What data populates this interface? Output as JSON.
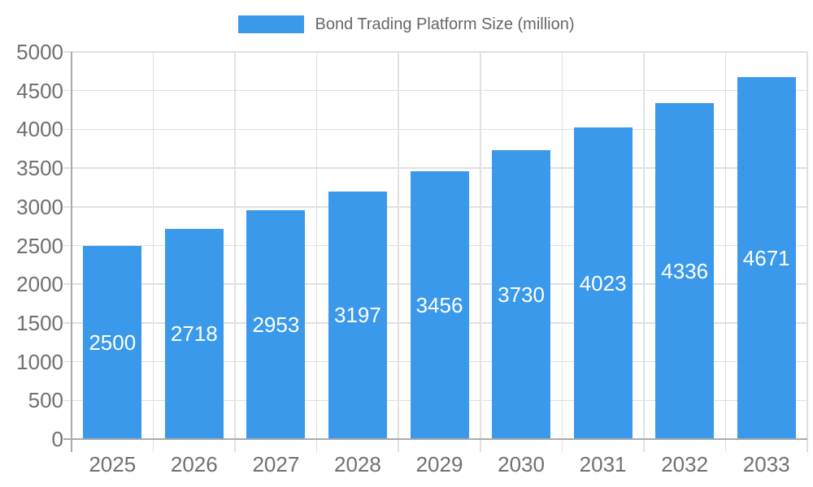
{
  "chart_data": {
    "type": "bar",
    "title": "",
    "categories": [
      "2025",
      "2026",
      "2027",
      "2028",
      "2029",
      "2030",
      "2031",
      "2032",
      "2033"
    ],
    "series": [
      {
        "name": "Bond Trading Platform Size (million)",
        "values": [
          2500,
          2718,
          2953,
          3197,
          3456,
          3730,
          4023,
          4336,
          4671
        ],
        "color": "#3B99EC"
      }
    ],
    "xlabel": "",
    "ylabel": "",
    "ylim": [
      0,
      5000
    ],
    "yticks": [
      0,
      500,
      1000,
      1500,
      2000,
      2500,
      3000,
      3500,
      4000,
      4500,
      5000
    ],
    "grid": true,
    "legend_position": "top",
    "value_labels": "inside-center",
    "colors": {
      "bar": "#3B99EC",
      "grid": "#E0E0E0",
      "axis": "#AAAAAA",
      "tick_label": "#707070",
      "value_label": "#FFFFFF",
      "legend_text": "#666666",
      "background": "#FFFFFF"
    }
  }
}
